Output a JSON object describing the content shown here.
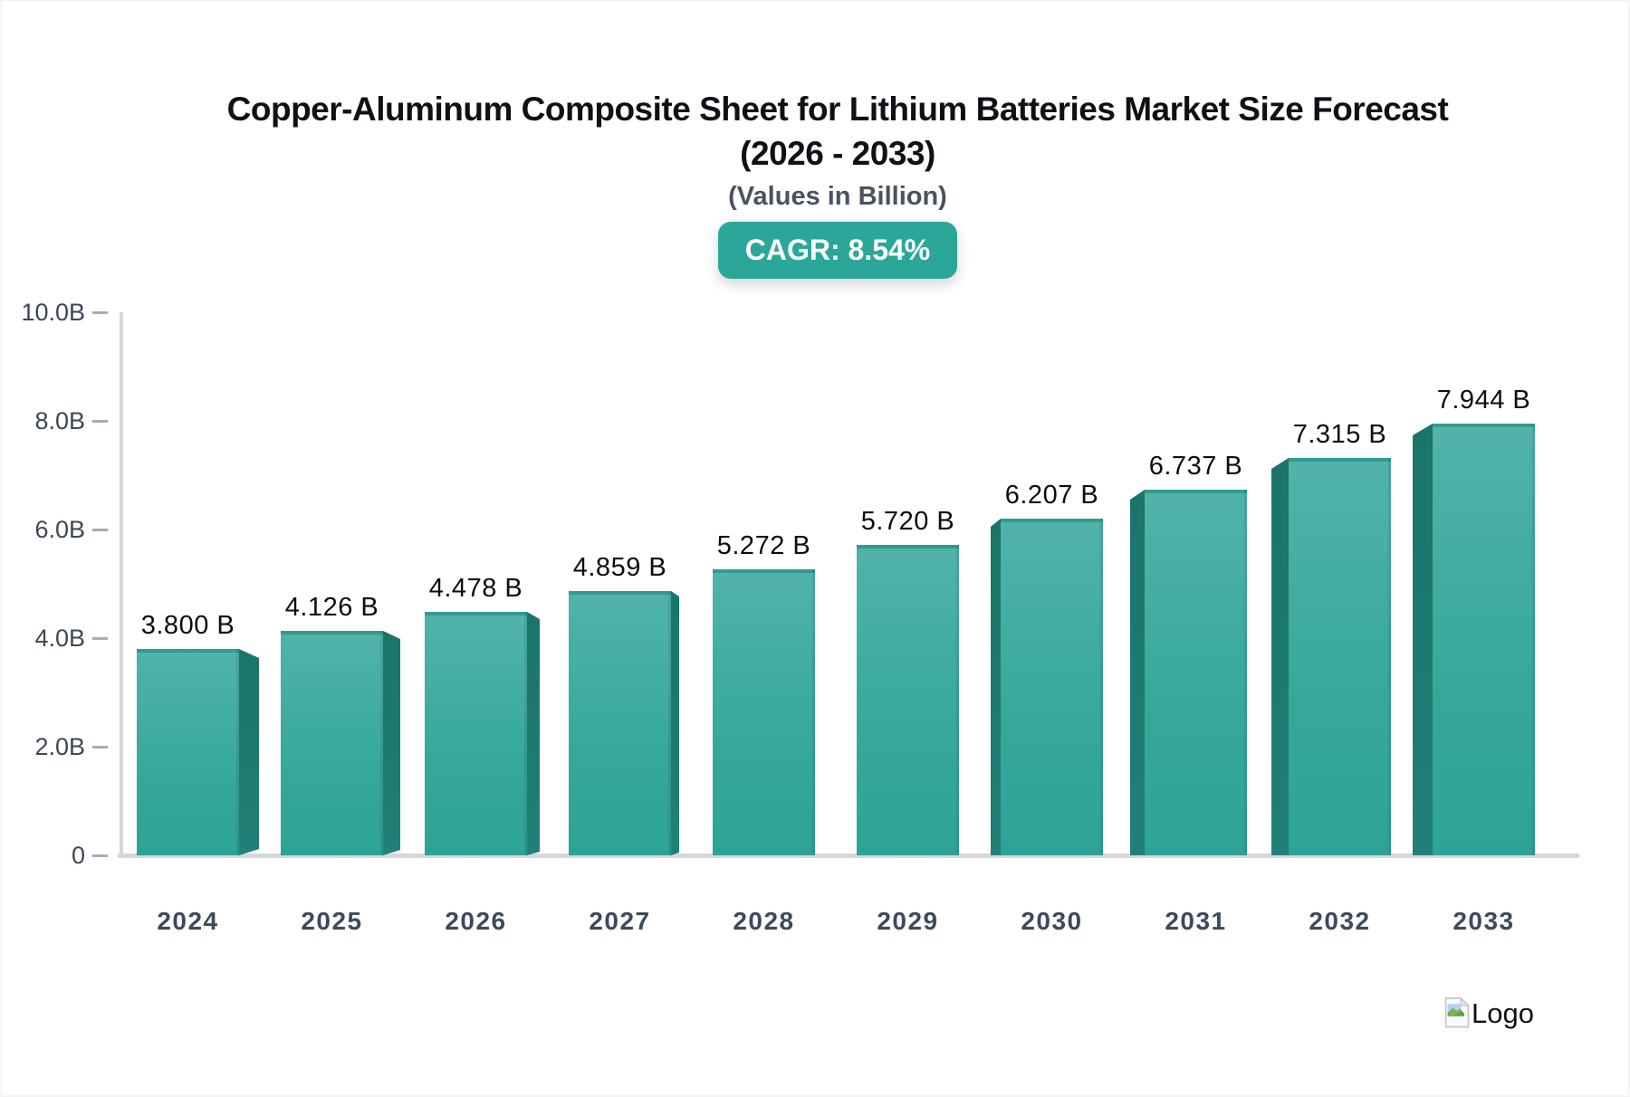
{
  "header": {
    "title_line1": "Copper-Aluminum Composite Sheet for Lithium Batteries Market Size Forecast",
    "title_line2": "(2026 - 2033)",
    "subtitle": "(Values in Billion)",
    "cagr_label": "CAGR: 8.54%"
  },
  "footer": {
    "logo_text": "Logo"
  },
  "colors": {
    "accent_teal": "#2aa799",
    "bar_front_top": "#52b3aa",
    "bar_front_bottom": "#2ca396",
    "bar_top_cap": "#2f9c90",
    "bar_side": "#1e7b71",
    "axis_line": "#d5d7dd",
    "tick": "#a7abb5",
    "title_text": "#0e1116",
    "subtitle_text": "#4a5260",
    "axis_label_text": "#3e4756",
    "value_label_text": "#0a0d12"
  },
  "chart_data": {
    "type": "bar",
    "title": "Copper-Aluminum Composite Sheet for Lithium Batteries Market Size Forecast (2026 - 2033)",
    "subtitle": "(Values in Billion)",
    "cagr": "8.54%",
    "unit": "Billion",
    "categories": [
      "2024",
      "2025",
      "2026",
      "2027",
      "2028",
      "2029",
      "2030",
      "2031",
      "2032",
      "2033"
    ],
    "values": [
      3.8,
      4.126,
      4.478,
      4.859,
      5.272,
      5.72,
      6.207,
      6.737,
      7.315,
      7.944
    ],
    "value_labels": [
      "3.800 B",
      "4.126 B",
      "4.478 B",
      "4.859 B",
      "5.272 B",
      "5.720 B",
      "6.207 B",
      "6.737 B",
      "7.315 B",
      "7.944 B"
    ],
    "ylim": [
      0,
      10
    ],
    "y_ticks": [
      {
        "value": 0,
        "label": "0"
      },
      {
        "value": 2,
        "label": "2.0B"
      },
      {
        "value": 4,
        "label": "4.0B"
      },
      {
        "value": 6,
        "label": "6.0B"
      },
      {
        "value": 8,
        "label": "8.0B"
      },
      {
        "value": 10,
        "label": "10.0B"
      }
    ],
    "grid": false,
    "legend_position": "none",
    "bar_style": "3d-central-perspective"
  }
}
